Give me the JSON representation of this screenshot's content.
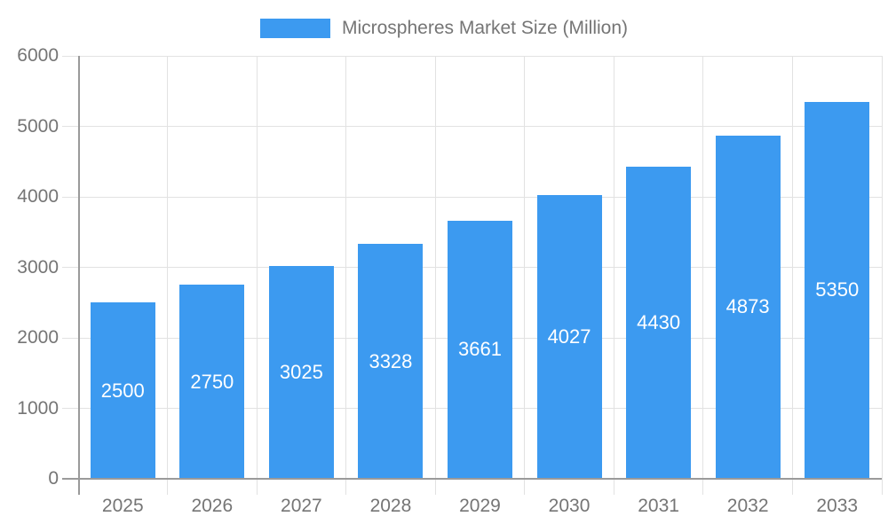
{
  "legend": {
    "label": "Microspheres Market Size (Million)"
  },
  "chart_data": {
    "type": "bar",
    "title": "Microspheres Market Size (Million)",
    "categories": [
      "2025",
      "2026",
      "2027",
      "2028",
      "2029",
      "2030",
      "2031",
      "2032",
      "2033"
    ],
    "values": [
      2500,
      2750,
      3025,
      3328,
      3661,
      4027,
      4430,
      4873,
      5350
    ],
    "xlabel": "",
    "ylabel": "",
    "ylim": [
      0,
      6000
    ],
    "yticks": [
      0,
      1000,
      2000,
      3000,
      4000,
      5000,
      6000
    ],
    "grid": true,
    "legend_position": "top-center",
    "value_labels": "centered-inside-bars",
    "colors": {
      "bar": "#3c9af0",
      "value_label": "#ffffff",
      "axis_text": "#757575",
      "grid_line": "#e2e2e2",
      "axis_line": "#9a9a9a",
      "background": "#ffffff"
    }
  }
}
